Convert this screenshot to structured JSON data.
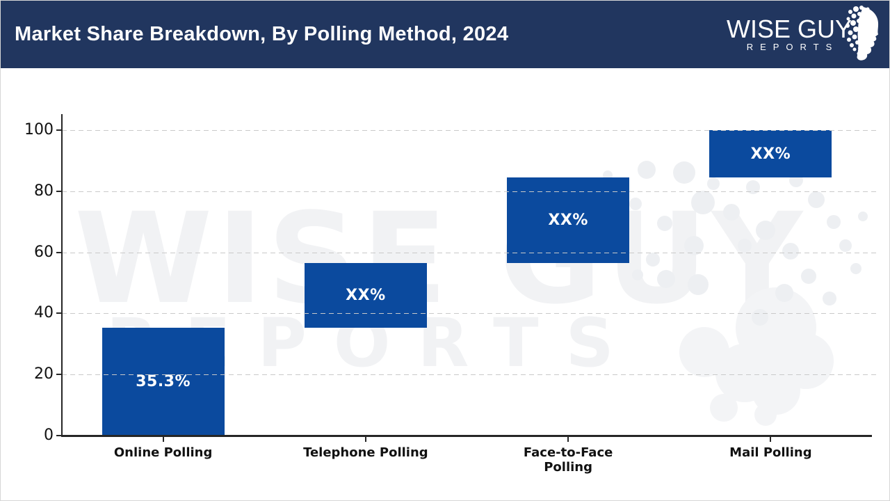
{
  "header": {
    "title": "Market Share Breakdown, By Polling Method, 2024",
    "background_color": "#21365f",
    "text_color": "#ffffff",
    "logo": {
      "name": "Wise Guy Reports",
      "line1": "WISE GUY",
      "line2": "REPORTS"
    }
  },
  "watermark": {
    "line1": "WISE GUY",
    "line2": "REPORTS",
    "color": "#f1f2f4"
  },
  "chart_data": {
    "type": "bar",
    "subtype": "waterfall (cumulative market share segments)",
    "title": "Market Share Breakdown, By Polling Method, 2024",
    "categories": [
      "Online Polling",
      "Telephone Polling",
      "Face-to-Face Polling",
      "Mail Polling"
    ],
    "category_label_lines": [
      [
        "Online Polling"
      ],
      [
        "Telephone Polling"
      ],
      [
        "Face-to-Face",
        "Polling"
      ],
      [
        "Mail Polling"
      ]
    ],
    "series": [
      {
        "name": "Market share (%)",
        "segments": [
          {
            "category": "Online Polling",
            "start": 0,
            "end": 35.3,
            "label": "35.3%"
          },
          {
            "category": "Telephone Polling",
            "start": 35.3,
            "end": 56.5,
            "label": "XX%"
          },
          {
            "category": "Face-to-Face Polling",
            "start": 56.5,
            "end": 84.5,
            "label": "XX%"
          },
          {
            "category": "Mail Polling",
            "start": 84.5,
            "end": 100,
            "label": "XX%"
          }
        ]
      }
    ],
    "xlabel": "",
    "ylabel": "",
    "ylim": [
      0,
      100
    ],
    "yticks": [
      0,
      20,
      40,
      60,
      80,
      100
    ],
    "grid": "horizontal-dashed",
    "legend_position": "none",
    "bar_color": "#0b4a9e",
    "bar_label_color": "#ffffff",
    "axis_color": "#262626",
    "gridline_color": "#c9c9c9",
    "tick_label_color": "#111111"
  }
}
